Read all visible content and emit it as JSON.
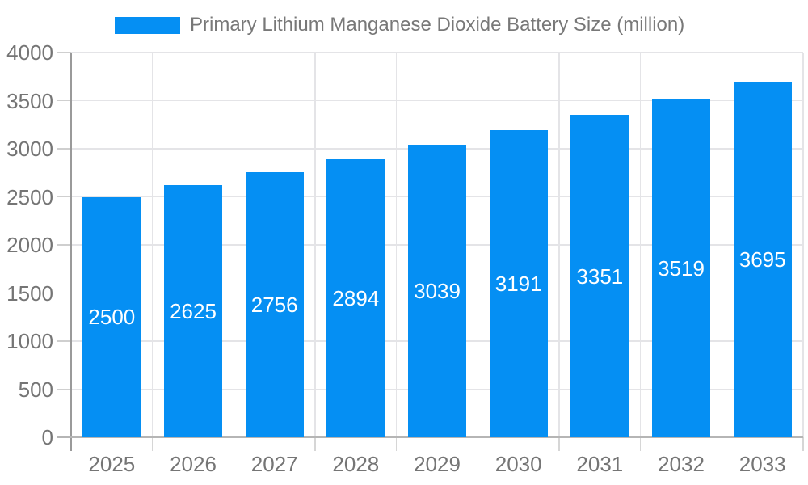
{
  "legend": {
    "position": "top",
    "swatch_color": "#058FF3"
  },
  "chart_data": {
    "type": "bar",
    "title": "Primary Lithium Manganese Dioxide Battery Size (million)",
    "categories": [
      "2025",
      "2026",
      "2027",
      "2028",
      "2029",
      "2030",
      "2031",
      "2032",
      "2033"
    ],
    "series": [
      {
        "name": "Primary Lithium Manganese Dioxide Battery Size (million)",
        "values": [
          2500,
          2625,
          2756,
          2894,
          3039,
          3191,
          3351,
          3519,
          3695
        ],
        "color": "#058FF3"
      }
    ],
    "xlabel": "",
    "ylabel": "",
    "ylim": [
      0,
      4000
    ],
    "yticks": [
      0,
      500,
      1000,
      1500,
      2000,
      2500,
      3000,
      3500,
      4000
    ],
    "grid": true,
    "legend_position": "top",
    "value_labels_position": "inside-center",
    "value_label_color": "#ffffff",
    "axis_label_color": "#757575",
    "background_color": "#ffffff"
  }
}
